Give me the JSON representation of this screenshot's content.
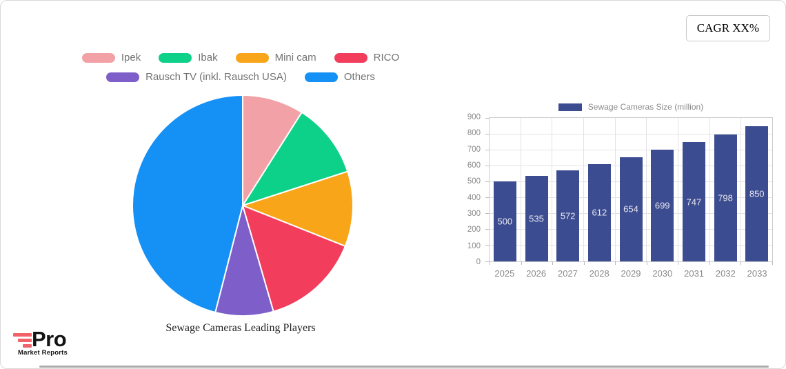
{
  "badge": {
    "cagr_label": "CAGR XX%"
  },
  "logo": {
    "brand": "Pro",
    "subtitle": "Market Reports",
    "bar_color": "#f2626b"
  },
  "chart_data": [
    {
      "type": "pie",
      "title": "Sewage Cameras Leading Players",
      "labels": [
        "Ipek",
        "Ibak",
        "Mini cam",
        "RICO",
        "Rausch TV (inkl. Rausch USA)",
        "Others"
      ],
      "values": [
        9,
        11,
        11,
        14.5,
        8.5,
        46
      ],
      "colors": [
        "#f2a1a7",
        "#0ed189",
        "#f9a51a",
        "#f23d5d",
        "#7e5fc9",
        "#1590f5"
      ],
      "start_angle_deg": 0,
      "direction": "clockwise",
      "legend_position": "top",
      "legend_rows": [
        4,
        2
      ]
    },
    {
      "type": "bar",
      "legend": "Sewage Cameras Size (million)",
      "categories": [
        "2025",
        "2026",
        "2027",
        "2028",
        "2029",
        "2030",
        "2031",
        "2032",
        "2033"
      ],
      "values": [
        500,
        535,
        572,
        612,
        654,
        699,
        747,
        798,
        850
      ],
      "bar_color": "#3c4c90",
      "value_label_color": "#e8e8f0",
      "ylim": [
        0,
        900
      ],
      "ytick_step": 100,
      "yticks": [
        0,
        100,
        200,
        300,
        400,
        500,
        600,
        700,
        800,
        900
      ],
      "grid": true,
      "legend_position": "top"
    }
  ]
}
